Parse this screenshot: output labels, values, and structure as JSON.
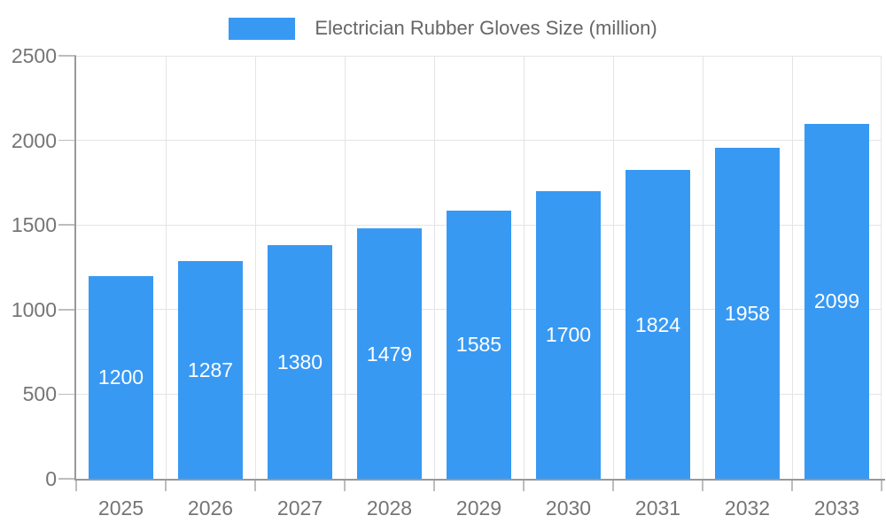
{
  "chart_data": {
    "type": "bar",
    "title": "Electrician Rubber Gloves Size (million)",
    "categories": [
      "2025",
      "2026",
      "2027",
      "2028",
      "2029",
      "2030",
      "2031",
      "2032",
      "2033"
    ],
    "values": [
      1200,
      1287,
      1380,
      1479,
      1585,
      1700,
      1824,
      1958,
      2099
    ],
    "xlabel": "",
    "ylabel": "",
    "ylim": [
      0,
      2500
    ],
    "yticks": [
      0,
      500,
      1000,
      1500,
      2000,
      2500
    ],
    "grid": true,
    "legend_position": "top",
    "value_labels": "inside-center",
    "colors": {
      "bar": "#3899F3",
      "value_label": "#FFFFFF",
      "grid": "#E4E4E4",
      "axis": "#999999",
      "tick_mark": "#BDBDBD",
      "tick_label": "#757575",
      "legend_text": "#666666",
      "background": "#FFFFFF"
    }
  }
}
